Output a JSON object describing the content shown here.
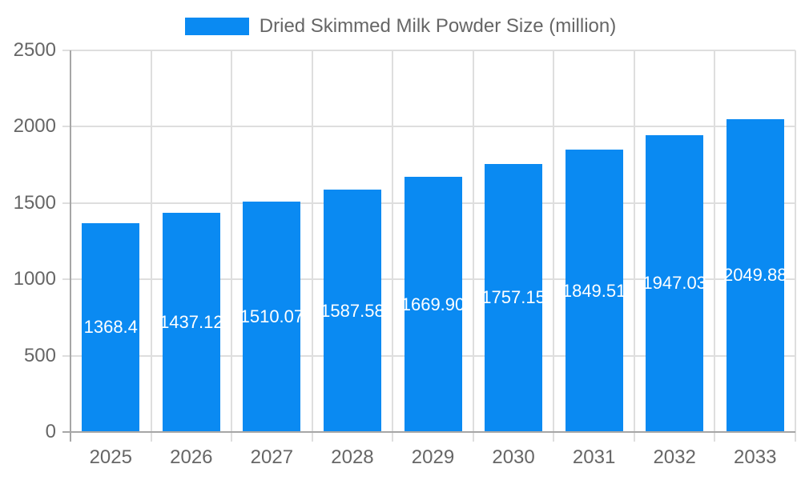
{
  "chart_data": {
    "type": "bar",
    "legend_label": "Dried Skimmed Milk Powder Size (million)",
    "legend_position": "top",
    "categories": [
      "2025",
      "2026",
      "2027",
      "2028",
      "2029",
      "2030",
      "2031",
      "2032",
      "2033"
    ],
    "values": [
      1368.4,
      1437.12,
      1510.07,
      1587.58,
      1669.9,
      1757.15,
      1849.51,
      1947.03,
      2049.88
    ],
    "bar_labels": [
      "1368.4",
      "1437.12",
      "1510.07",
      "1587.58",
      "1669.90",
      "1757.15",
      "1849.51",
      "1947.03",
      "2049.88"
    ],
    "xlabel": "",
    "ylabel": "",
    "ylim": [
      0,
      2500
    ],
    "yticks": [
      0,
      500,
      1000,
      1500,
      2000,
      2500
    ],
    "grid": true,
    "bar_color": "#0a8af2",
    "bar_label_color": "#ffffff"
  },
  "colors": {
    "background": "#ffffff",
    "grid_line": "#dedede",
    "axis_line": "#a6a6a6",
    "tick_text": "#666666",
    "legend_text": "#666666"
  }
}
